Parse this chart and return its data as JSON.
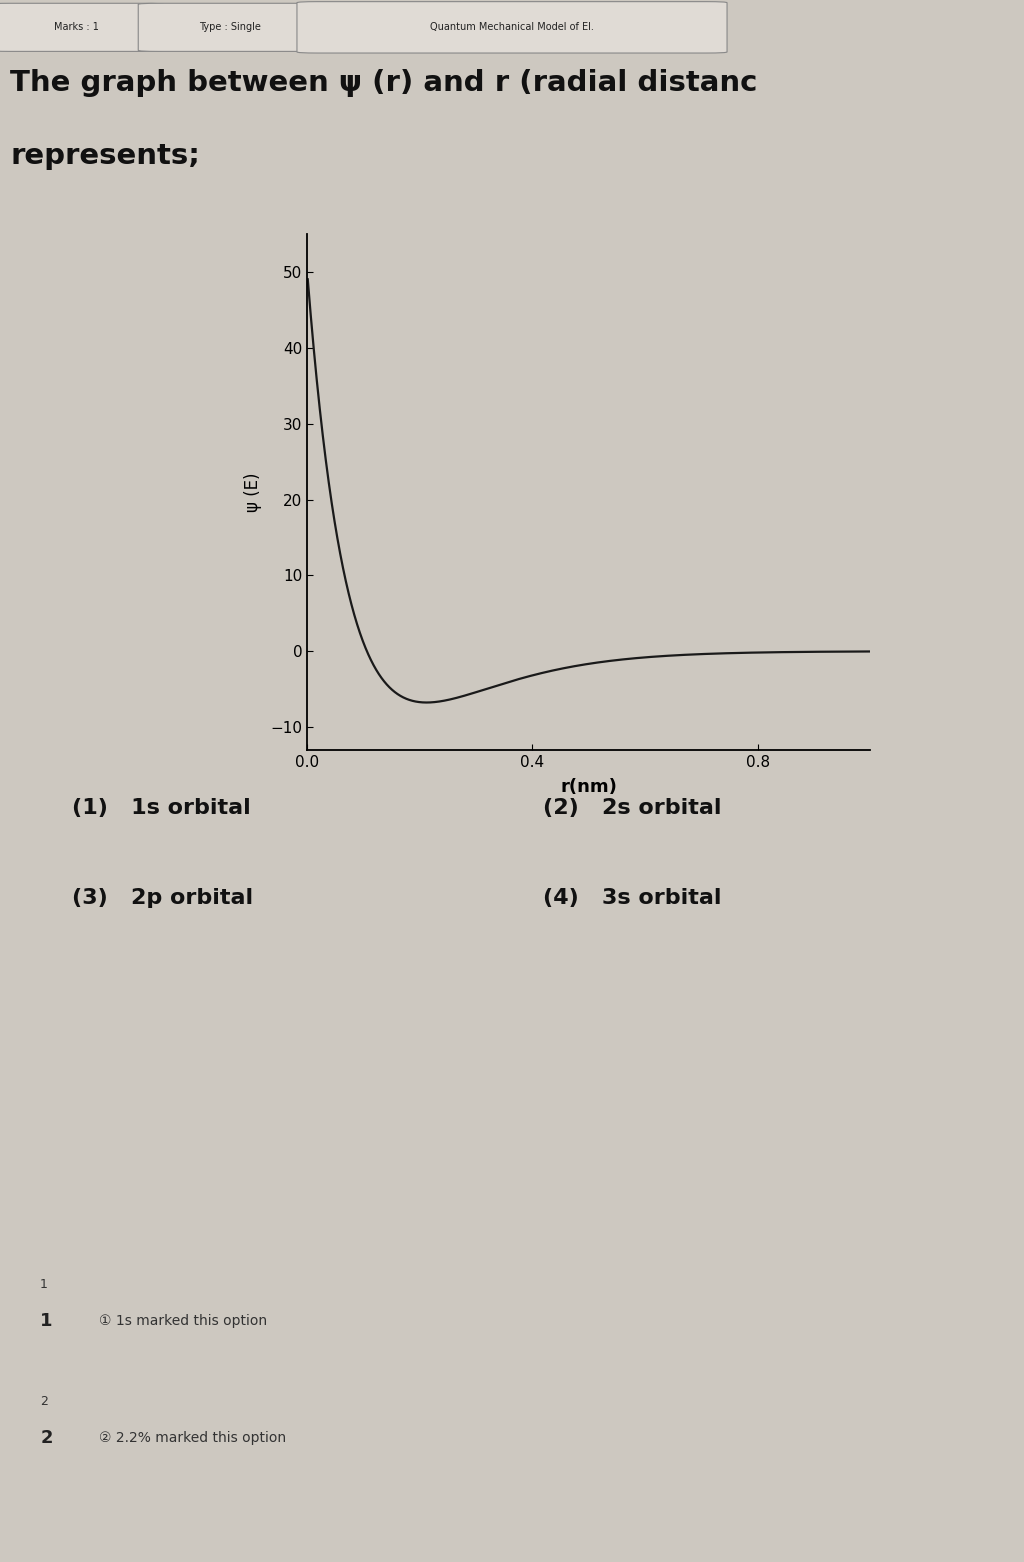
{
  "ylabel": "ψ (E)",
  "xlabel": "r(nm)",
  "ylim": [
    -13,
    55
  ],
  "xlim": [
    0,
    1.0
  ],
  "yticks": [
    -10,
    0,
    10,
    20,
    30,
    40,
    50
  ],
  "xticks": [
    0,
    0.4,
    0.8
  ],
  "curve_color": "#1a1a1a",
  "bg_color": "#cdc8c0",
  "plot_bg": "#cdc8c0",
  "options_row1_left": "(1)   1s orbital",
  "options_row1_right": "(2)   2s orbital",
  "options_row2_left": "(3)   2p orbital",
  "options_row2_right": "(4)   3s orbital",
  "header_tags": [
    "Marks : 1",
    "Type : Single",
    "Quantum Mechanical Model of El."
  ],
  "ans1_num": "1",
  "ans1_superscript": "1",
  "ans1_text": "① 1s marked this option",
  "ans2_num": "2",
  "ans2_superscript": "2",
  "ans2_text": "② 2.2% marked this option",
  "ans1_border": "#c04040",
  "ans1_fill": "#f5eaea",
  "ans2_border": "#407060",
  "ans2_fill": "#eaf5ee",
  "title_line1": "The graph between ψ (r) and r (radial distanc",
  "title_line2": "represents;"
}
